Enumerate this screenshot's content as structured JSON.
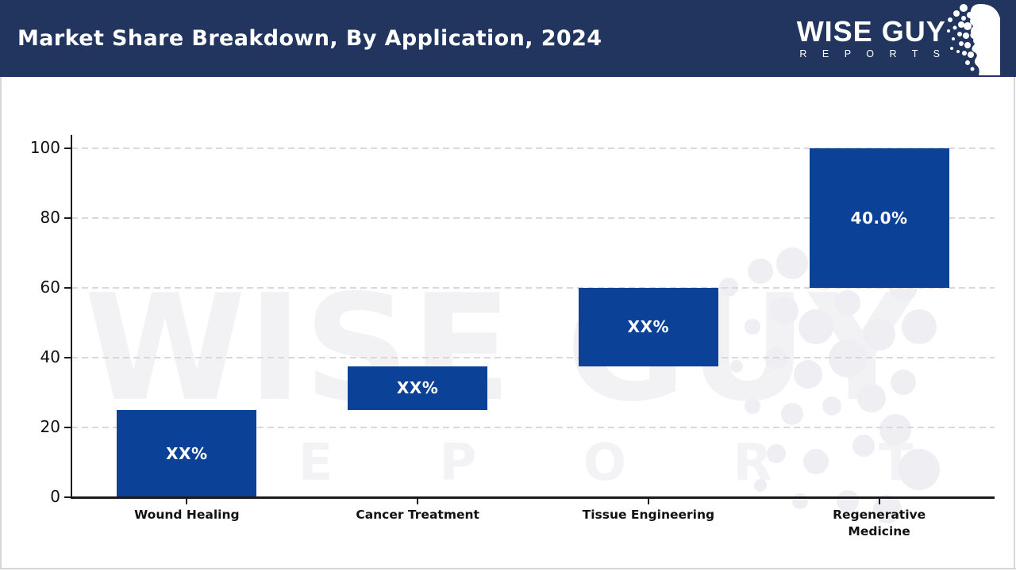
{
  "header": {
    "title": "Market Share Breakdown, By Application, 2024",
    "brand": {
      "name_top": "WISE GUY",
      "name_bottom": "R E P O R T S",
      "face_icon": "dotted-face-profile-icon"
    }
  },
  "watermark": {
    "line1": "WISE GUY",
    "line2": "R E P O R T S"
  },
  "colors": {
    "header_bg": "#22355F",
    "bar_fill": "#0B4298",
    "bar_label_text": "#FFFFFF",
    "grid_line": "#D9D9D9",
    "axis_line": "#1A1A1A",
    "tick_text": "#111111",
    "watermark_text": "#F2F2F4",
    "page_border": "#D7D7D7"
  },
  "chart_data": {
    "type": "bar",
    "subtype": "waterfall",
    "title": "Market Share Breakdown, By Application, 2024",
    "categories": [
      "Wound Healing",
      "Cancer Treatment",
      "Tissue Engineering",
      "Regenerative Medicine"
    ],
    "segments": [
      {
        "category": "Wound Healing",
        "start": 0,
        "end": 25,
        "value_label": "XX%"
      },
      {
        "category": "Cancer Treatment",
        "start": 25,
        "end": 37.5,
        "value_label": "XX%"
      },
      {
        "category": "Tissue Engineering",
        "start": 37.5,
        "end": 60,
        "value_label": "XX%"
      },
      {
        "category": "Regenerative Medicine",
        "start": 60,
        "end": 100,
        "value_label": "40.0%"
      }
    ],
    "ylim": [
      0,
      100
    ],
    "yticks": [
      0,
      20,
      40,
      60,
      80,
      100
    ],
    "xlabel": "",
    "ylabel": "",
    "grid": "horizontal-dashed",
    "legend": "none"
  }
}
